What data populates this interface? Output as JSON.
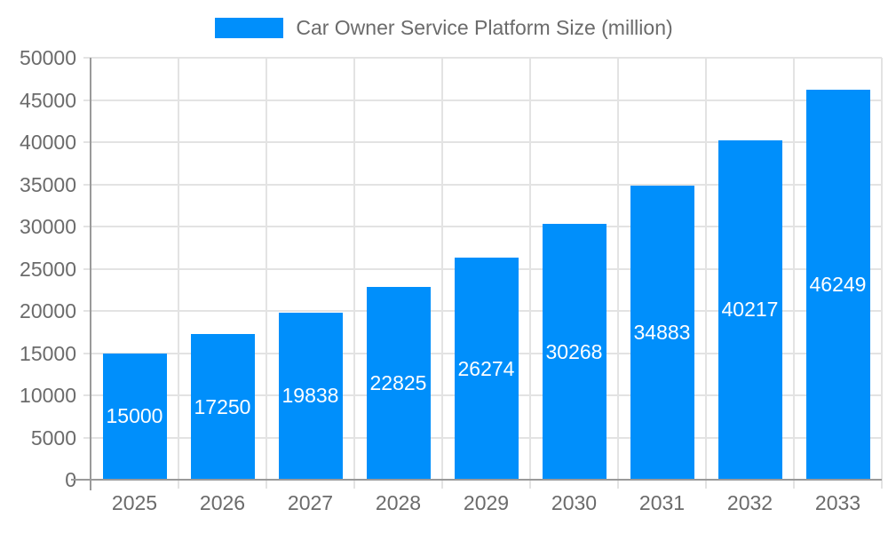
{
  "chart_data": {
    "type": "bar",
    "name": "Car Owner Service Platform Size (million)",
    "title": "",
    "xlabel": "",
    "ylabel": "",
    "categories": [
      "2025",
      "2026",
      "2027",
      "2028",
      "2029",
      "2030",
      "2031",
      "2032",
      "2033"
    ],
    "values": [
      15000,
      17250,
      19838,
      22825,
      26274,
      30268,
      34883,
      40217,
      46249
    ],
    "ylim": [
      0,
      50000
    ],
    "yticks": [
      0,
      5000,
      10000,
      15000,
      20000,
      25000,
      30000,
      35000,
      40000,
      45000,
      50000
    ],
    "legend_position": "top-center",
    "grid": true,
    "bar_value_labels": "inside-center",
    "colors": {
      "bar": "#008ffb",
      "bar_label": "#ffffff",
      "axis": "#9a9a9a",
      "grid": "#e3e3e3",
      "text": "#6b6b6b",
      "background": "#ffffff"
    }
  }
}
